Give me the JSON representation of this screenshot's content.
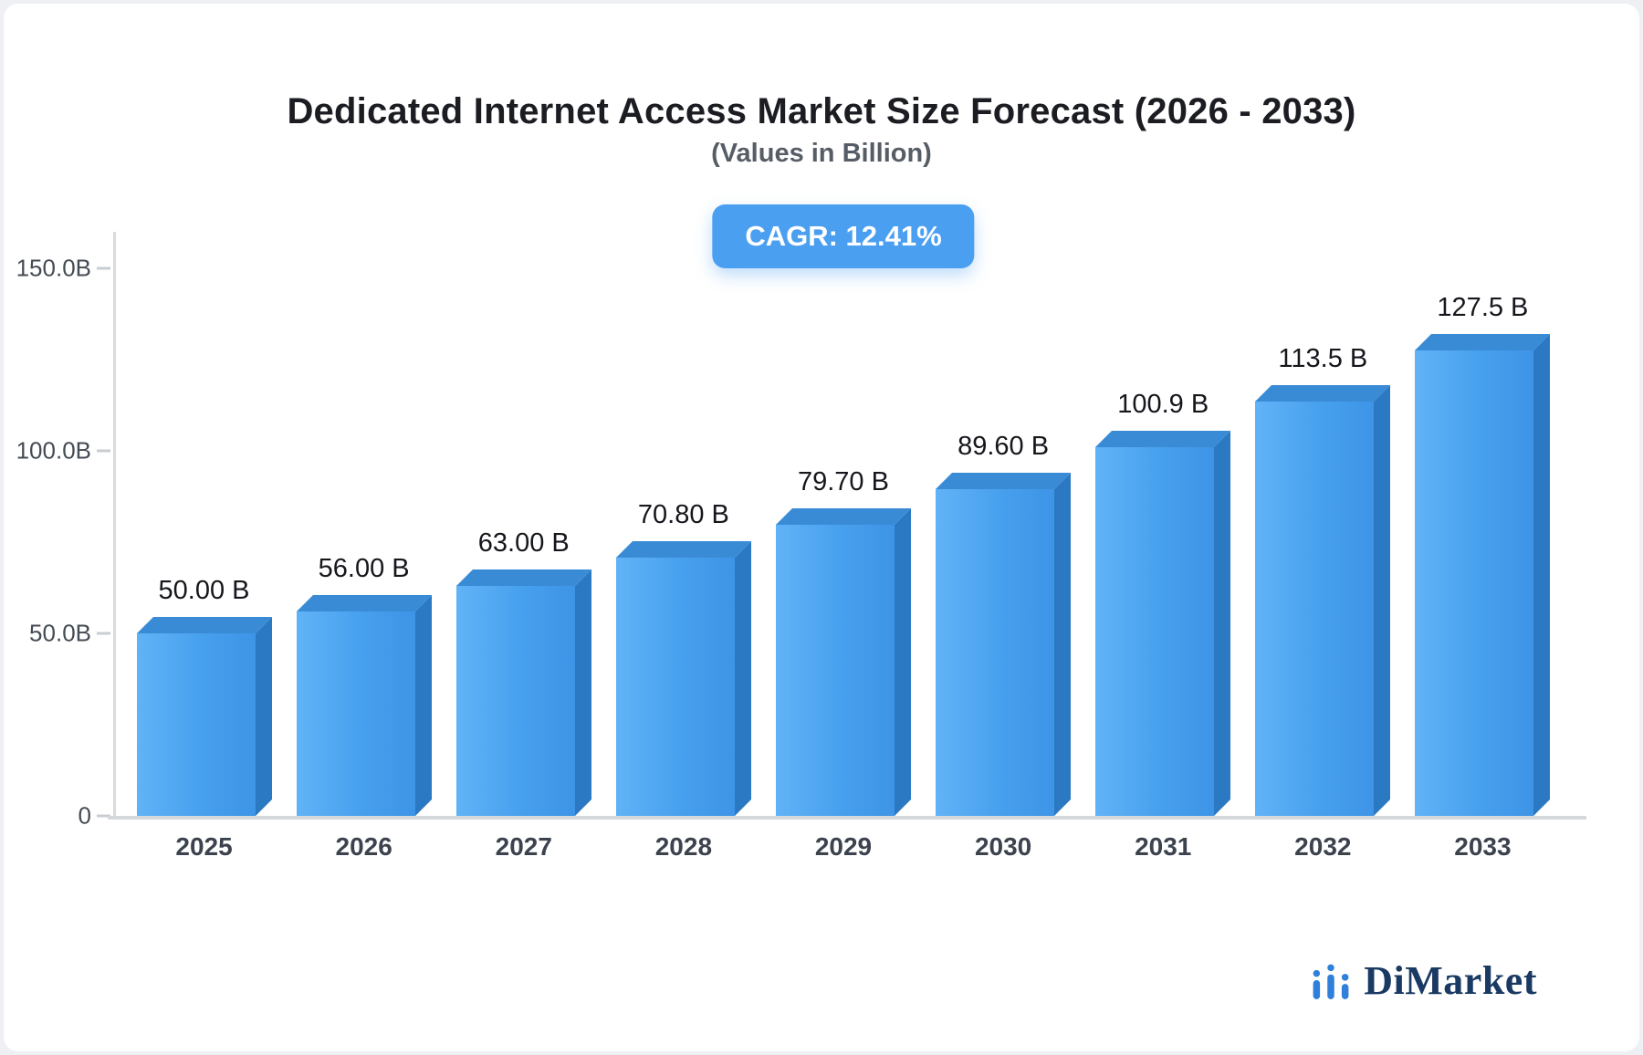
{
  "chart_data": {
    "type": "bar",
    "title": "Dedicated Internet Access Market Size Forecast (2026 - 2033)",
    "subtitle": "(Values in Billion)",
    "cagr_label": "CAGR: 12.41%",
    "categories": [
      "2025",
      "2026",
      "2027",
      "2028",
      "2029",
      "2030",
      "2031",
      "2032",
      "2033"
    ],
    "values": [
      50.0,
      56.0,
      63.0,
      70.8,
      79.7,
      89.6,
      100.9,
      113.5,
      127.5
    ],
    "value_labels": [
      "50.00 B",
      "56.00 B",
      "63.00 B",
      "70.80 B",
      "79.70 B",
      "89.60 B",
      "100.9 B",
      "113.5 B",
      "127.5 B"
    ],
    "xlabel": "",
    "ylabel": "",
    "ylim": [
      0,
      150
    ],
    "yticks": [
      0,
      50,
      100,
      150
    ],
    "ytick_labels": [
      "0",
      "50.0B",
      "100.0B",
      "150.0B"
    ],
    "grid": false,
    "legend": "none",
    "colors": {
      "bar_front": "#47a0ee",
      "bar_side": "#2b79c2",
      "bar_top": "#3a8bd6",
      "badge_background": "#4b9ff0",
      "badge_text": "#ffffff",
      "axis": "#d5d8dc"
    }
  },
  "branding": {
    "logo_text": "DiMarket",
    "logo_icon": "bar-chart-icon",
    "logo_color": "#1a3a63",
    "logo_icon_color": "#2f7fdb"
  }
}
